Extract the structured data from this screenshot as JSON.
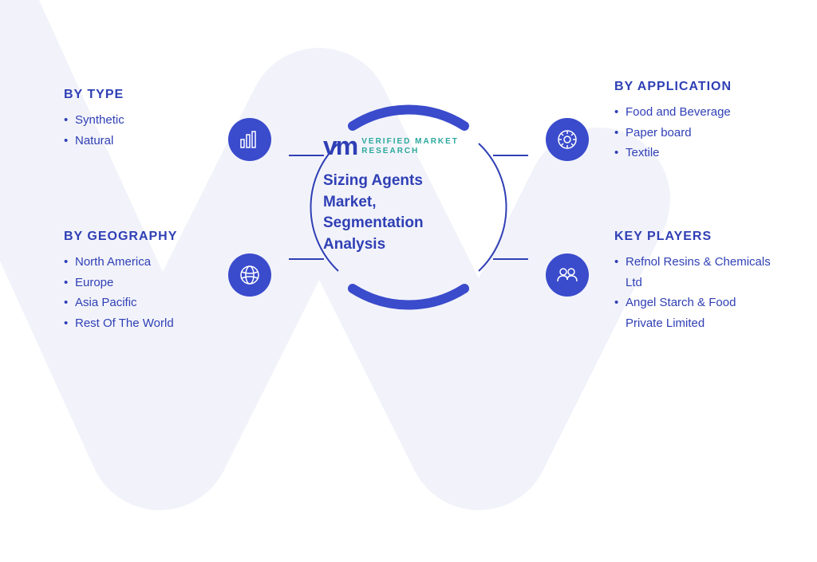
{
  "center": {
    "logoLabel": "VERIFIED\nMARKET\nRESEARCH",
    "title": "Sizing Agents Market, Segmentation Analysis"
  },
  "sections": {
    "type": {
      "title": "BY TYPE",
      "items": [
        "Synthetic",
        "Natural"
      ]
    },
    "geography": {
      "title": "BY GEOGRAPHY",
      "items": [
        "North America",
        "Europe",
        "Asia Pacific",
        "Rest Of The World"
      ]
    },
    "application": {
      "title": "BY APPLICATION",
      "items": [
        "Food and Beverage",
        "Paper board",
        "Textile"
      ]
    },
    "keyPlayers": {
      "title": "KEY PLAYERS",
      "items": [
        "Refnol Resins & Chemicals Ltd",
        "Angel Starch & Food Private Limited"
      ]
    }
  },
  "colors": {
    "primary": "#2f3fb5",
    "iconBg": "#3a4bcc",
    "teal": "#2ba89c",
    "watermark": "#eef0fb"
  },
  "ring": {
    "outerStroke": 12,
    "innerStroke": 2,
    "outerRadius": 130,
    "innerRadius": 110
  }
}
